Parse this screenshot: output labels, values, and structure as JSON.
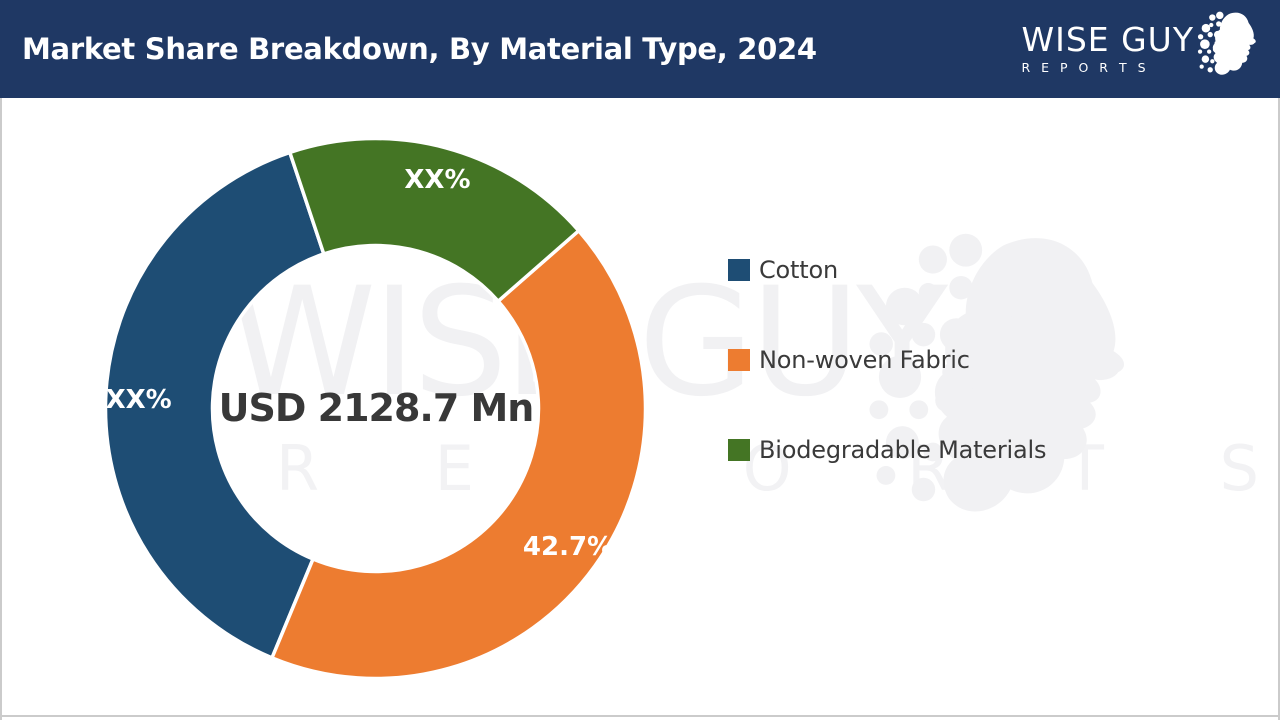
{
  "header": {
    "title": "Market Share Breakdown, By Material Type, 2024",
    "background_color": "#1F3864",
    "logo": {
      "line1": "WISE GUY",
      "line2": "R E P O R T S"
    }
  },
  "watermark": {
    "line1": "WISE GUY",
    "line2": "R E P O R T S"
  },
  "chart_data": {
    "type": "pie",
    "subtype": "donut",
    "title": "Market Share Breakdown, By Material Type, 2024",
    "center_label": "USD 2128.7 Mn",
    "segments": [
      {
        "name": "Cotton",
        "label": "XX%",
        "value": 38.6,
        "color": "#1E4D74"
      },
      {
        "name": "Non-woven Fabric",
        "label": "42.7%",
        "value": 42.7,
        "color": "#ED7C30"
      },
      {
        "name": "Biodegradable Materials",
        "label": "XX%",
        "value": 18.7,
        "color": "#447524"
      }
    ],
    "start_angle_deg": 108.5,
    "direction": "counterclockwise",
    "legend_position": "right",
    "slice_label_color": "#FFFFFF",
    "slice_gap_color": "#FFFFFF"
  },
  "colors": {
    "header_navy": "#1F3864",
    "text_dark": "#3A3A3A",
    "watermark_gray": "#F1F1F3",
    "border_gray": "#CBCBCB"
  }
}
